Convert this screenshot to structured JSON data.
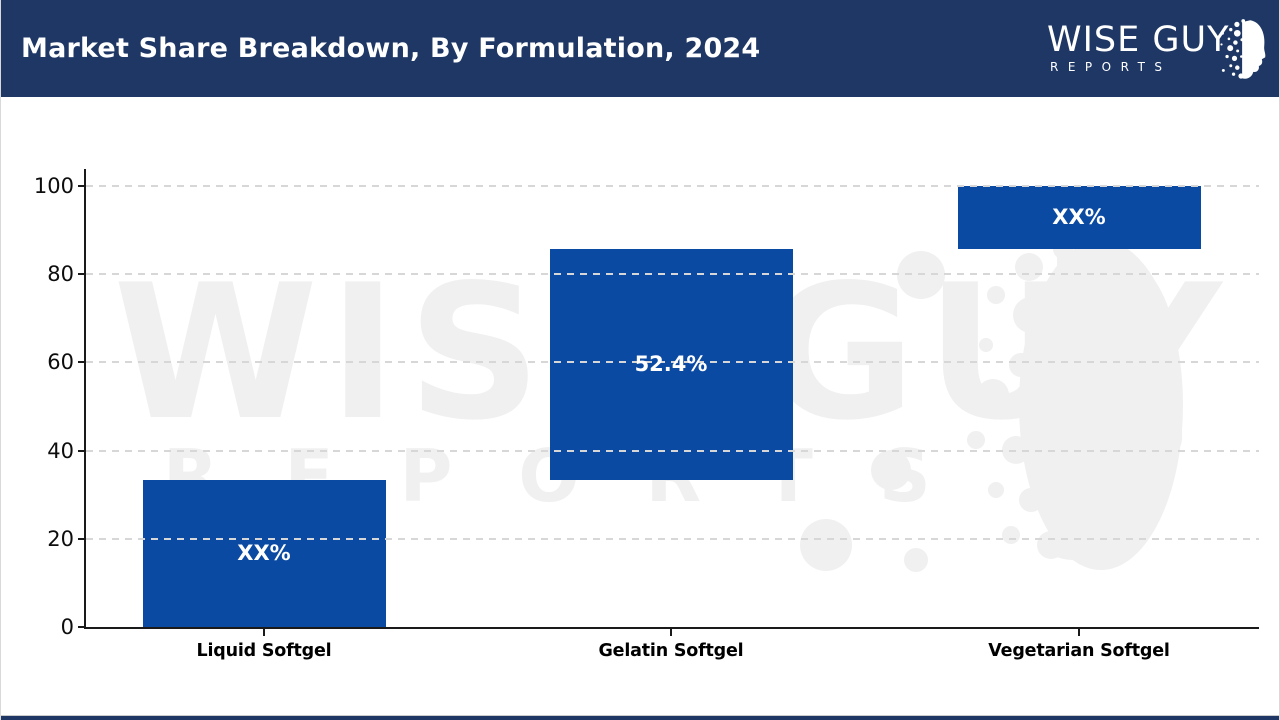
{
  "header": {
    "title": "Market Share Breakdown, By Formulation, 2024",
    "logo_line1": "WISE GUY",
    "logo_line2": "REPORTS",
    "bg_color": "#1e3764"
  },
  "watermark": {
    "line1": "WISE GUY",
    "line2": "REPORTS"
  },
  "chart_data": {
    "type": "bar",
    "subtype": "waterfall-breakdown",
    "title": "Market Share Breakdown, By Formulation, 2024",
    "categories": [
      "Liquid Softgel",
      "Gelatin Softgel",
      "Vegetarian Softgel"
    ],
    "segments": [
      {
        "category": "Liquid Softgel",
        "start": 0,
        "end": 33.4,
        "label": "XX%"
      },
      {
        "category": "Gelatin Softgel",
        "start": 33.4,
        "end": 85.8,
        "label": "52.4%"
      },
      {
        "category": "Vegetarian Softgel",
        "start": 85.8,
        "end": 100,
        "label": "XX%"
      }
    ],
    "ylim": [
      0,
      100
    ],
    "yticks": [
      0,
      20,
      40,
      60,
      80,
      100
    ],
    "grid": "dashed horizontal, drawn over bars",
    "legend": "none",
    "bar_color": "#0b4aa2",
    "bar_label_color": "#ffffff",
    "gridline_color": "#d7d7d7",
    "axis_color": "#1a1a1a"
  }
}
